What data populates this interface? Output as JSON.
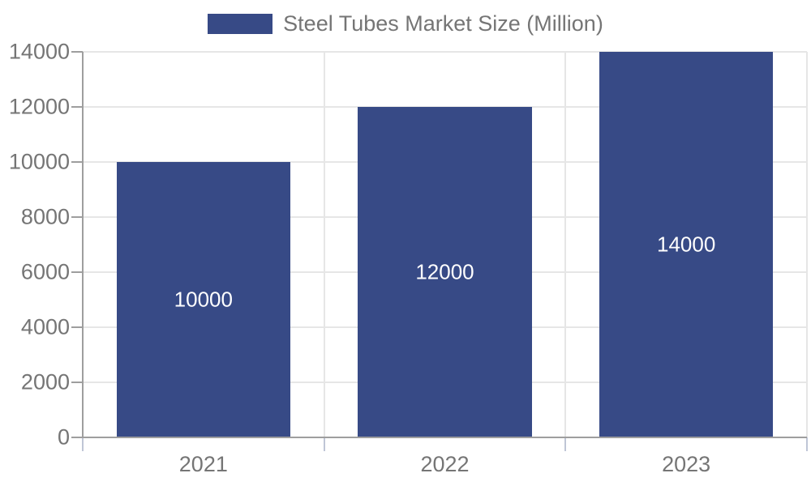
{
  "chart_data": {
    "type": "bar",
    "categories": [
      "2021",
      "2022",
      "2023"
    ],
    "series": [
      {
        "name": "Steel Tubes Market Size (Million)",
        "values": [
          10000,
          12000,
          14000
        ]
      }
    ],
    "bar_value_labels": [
      "10000",
      "12000",
      "14000"
    ],
    "title": "",
    "xlabel": "",
    "ylabel": "",
    "ylim": [
      0,
      14000
    ],
    "ytick_step": 2000,
    "ytick_labels": [
      "0",
      "2000",
      "4000",
      "6000",
      "8000",
      "10000",
      "12000",
      "14000"
    ],
    "grid": true,
    "legend_position": "top"
  },
  "colors": {
    "bar": "#374a86",
    "bar_label_text": "#ffffff",
    "axis_text": "#757575",
    "grid_line": "#e6e6e6",
    "axis_line": "#9e9e9e",
    "below_axis_tick": "#bfc6d6",
    "background": "#ffffff"
  }
}
